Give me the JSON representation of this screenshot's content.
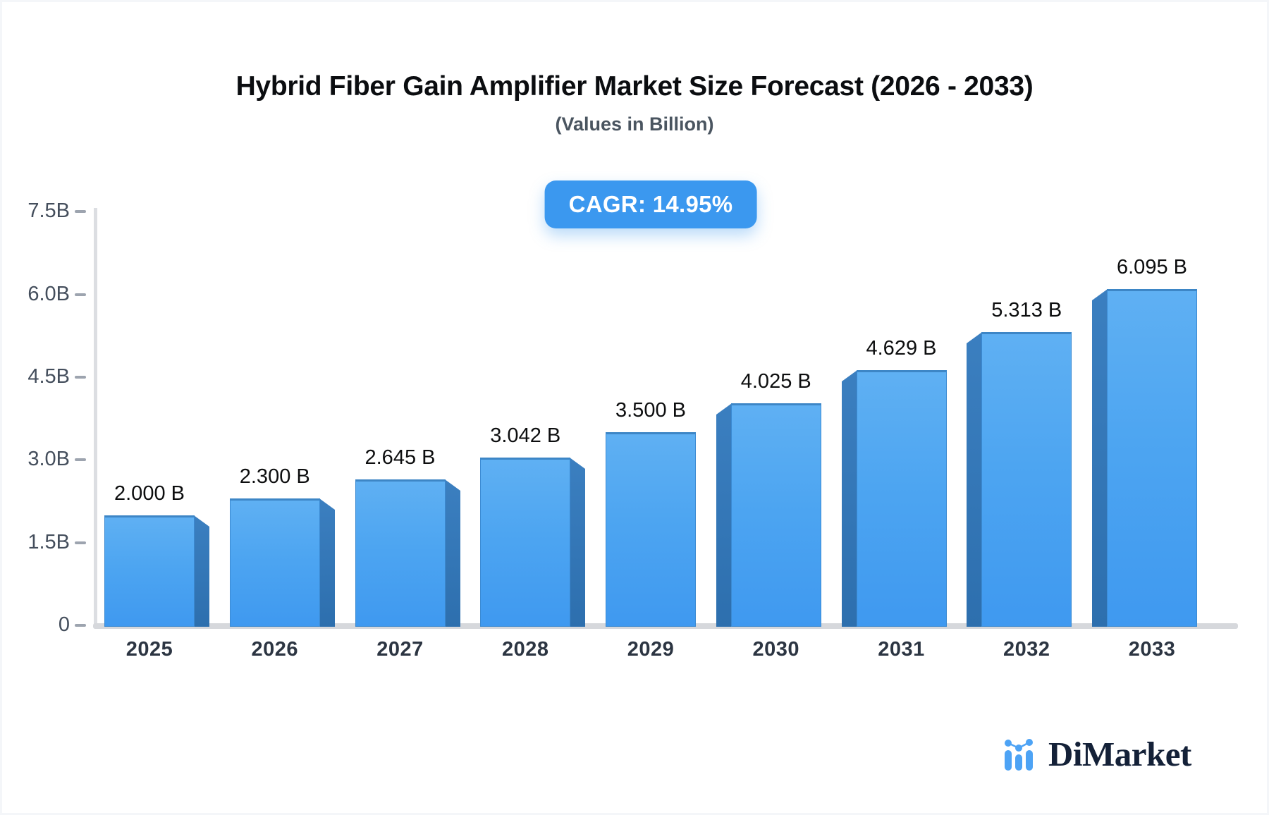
{
  "header": {
    "title": "Hybrid Fiber Gain Amplifier Market Size Forecast (2026 - 2033)",
    "subtitle": "(Values in Billion)"
  },
  "badge": {
    "label": "CAGR: 14.95%"
  },
  "logo": {
    "text": "DiMarket",
    "icon": "bar-chart-line-icon",
    "icon_color": "#4da3f5",
    "text_color": "#142138"
  },
  "colors": {
    "bar_face_top": "#5fb0f3",
    "bar_face_bottom": "#3f99f0",
    "bar_side": "#2e72b0",
    "badge_background": "#3b98ef",
    "axis_gray": "#d6d8dc",
    "title_text": "#0b0d10",
    "subtitle_text": "#4a5560",
    "year_label_text": "#2c3542"
  },
  "chart_data": {
    "type": "bar",
    "title": "Hybrid Fiber Gain Amplifier Market Size Forecast (2026 - 2033)",
    "subtitle": "(Values in Billion)",
    "cagr_percent": 14.95,
    "categories": [
      "2025",
      "2026",
      "2027",
      "2028",
      "2029",
      "2030",
      "2031",
      "2032",
      "2033"
    ],
    "values": [
      2.0,
      2.3,
      2.645,
      3.042,
      3.5,
      4.025,
      4.629,
      5.313,
      6.095
    ],
    "value_labels": [
      "2.000 B",
      "2.300 B",
      "2.645 B",
      "3.042 B",
      "3.500 B",
      "4.025 B",
      "4.629 B",
      "5.313 B",
      "6.095 B"
    ],
    "unit": "Billion",
    "xlabel": "",
    "ylabel": "",
    "ylim": [
      0,
      7.5
    ],
    "ytick_labels": [
      "0",
      "1.5B",
      "3.0B",
      "4.5B",
      "6.0B",
      "7.5B"
    ],
    "ytick_values": [
      0,
      1.5,
      3.0,
      4.5,
      6.0,
      7.5
    ],
    "grid": false,
    "legend": false,
    "bar_style": "3d-perspective"
  }
}
